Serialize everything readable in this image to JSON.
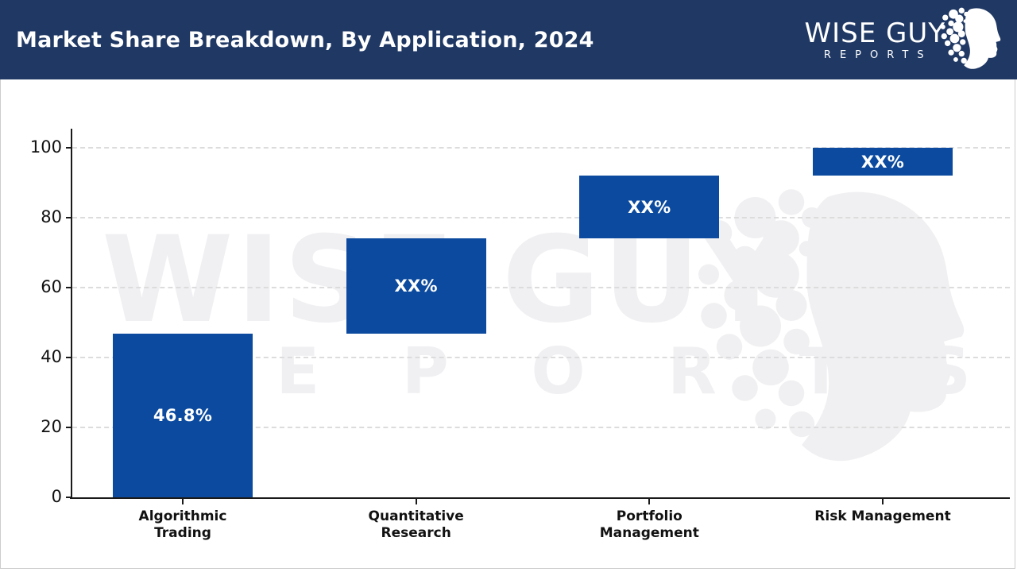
{
  "header": {
    "title": "Market Share Breakdown, By Application, 2024",
    "logo": {
      "line1": "WISE GUY",
      "line2": "REPORTS"
    }
  },
  "watermark": {
    "line1": "WISE GUY",
    "line2": "R E P O R T S"
  },
  "chart_data": {
    "type": "bar",
    "subtype": "waterfall",
    "title": "Market Share Breakdown, By Application, 2024",
    "categories": [
      "Algorithmic Trading",
      "Quantitative Research",
      "Portfolio Management",
      "Risk Management"
    ],
    "bars": [
      {
        "category": "Algorithmic Trading",
        "label_lines": [
          "Algorithmic",
          "Trading"
        ],
        "start": 0,
        "end": 46.8,
        "value_label": "46.8%"
      },
      {
        "category": "Quantitative Research",
        "label_lines": [
          "Quantitative",
          "Research"
        ],
        "start": 46.8,
        "end": 74.0,
        "value_label": "XX%"
      },
      {
        "category": "Portfolio Management",
        "label_lines": [
          "Portfolio",
          "Management"
        ],
        "start": 74.0,
        "end": 92.0,
        "value_label": "XX%"
      },
      {
        "category": "Risk Management",
        "label_lines": [
          "Risk Management"
        ],
        "start": 92.0,
        "end": 100.0,
        "value_label": "XX%"
      }
    ],
    "y_ticks": [
      0,
      20,
      40,
      60,
      80,
      100
    ],
    "ylim": [
      0,
      105
    ],
    "xlabel": "",
    "ylabel": "",
    "grid": "horizontal-dashed",
    "legend": "none"
  },
  "colors": {
    "header_bg": "#1f3864",
    "bar": "#0b4a9e",
    "gridline": "#dcdcdc",
    "axis": "#1a1a1a",
    "watermark": "#f0f0f3",
    "value_label": "#ffffff"
  }
}
